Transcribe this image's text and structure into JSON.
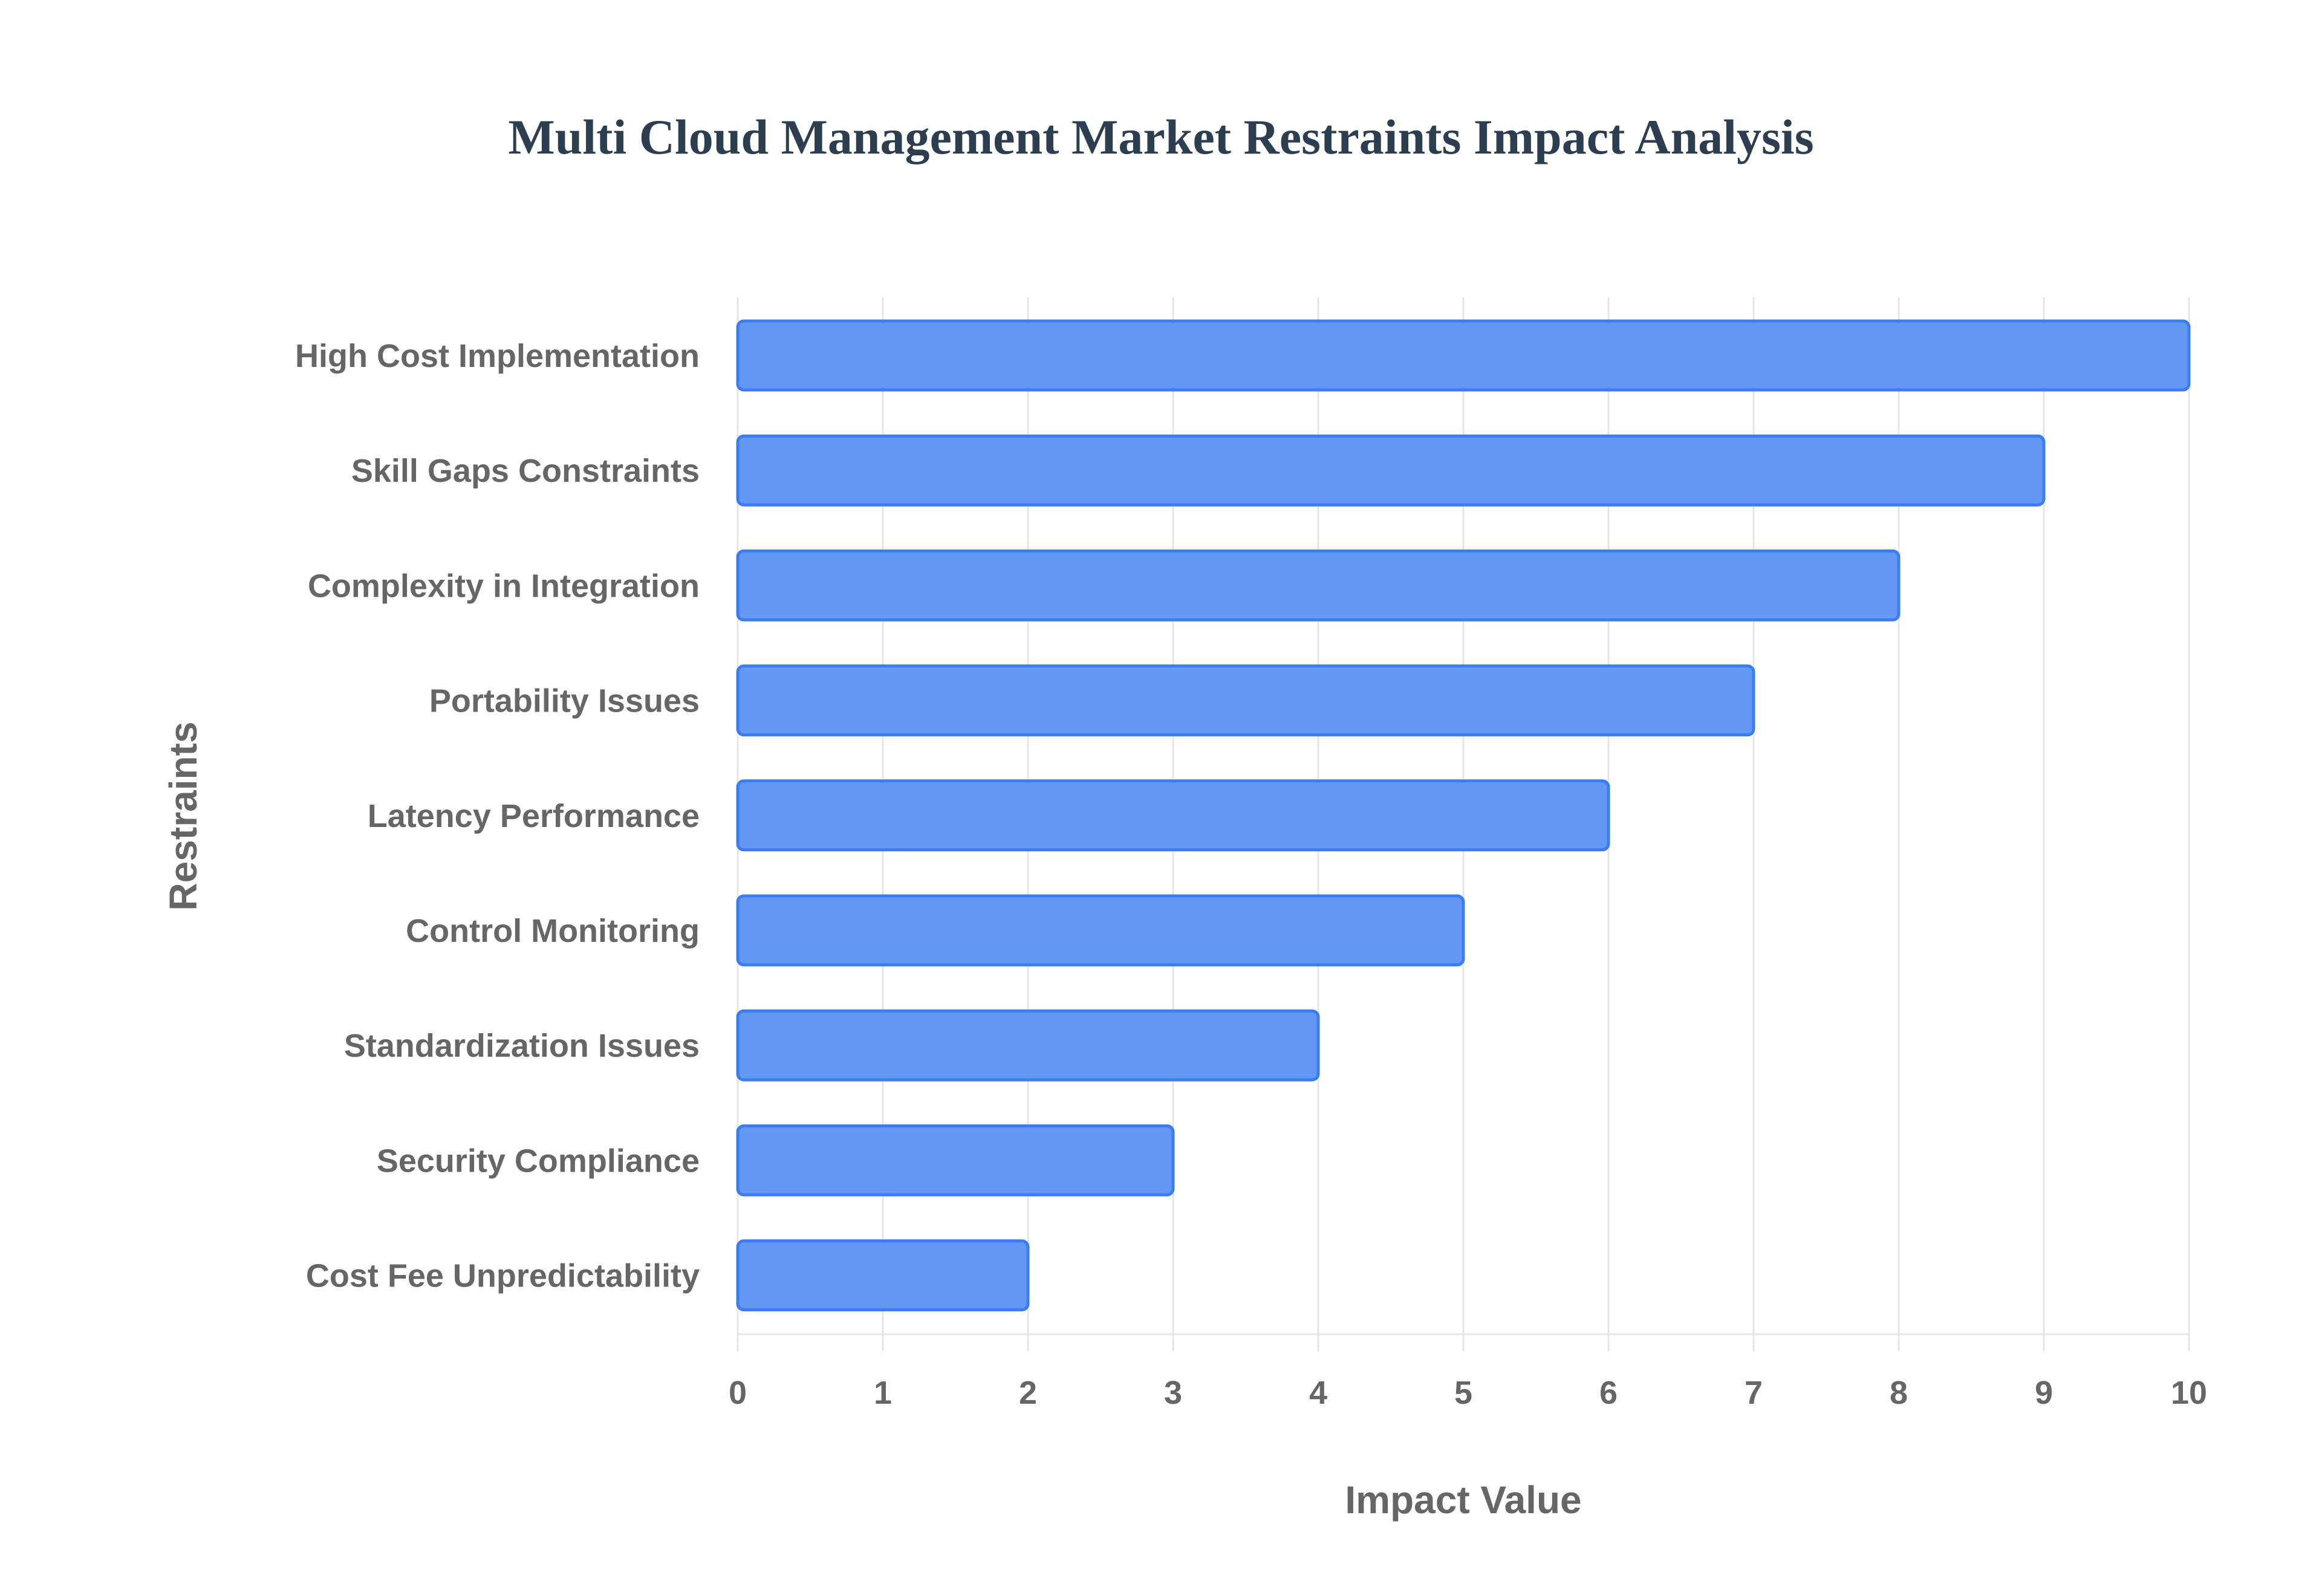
{
  "chart_data": {
    "type": "bar",
    "orientation": "horizontal",
    "title": "Multi Cloud Management Market Restraints Impact Analysis",
    "xlabel": "Impact Value",
    "ylabel": "Restraints",
    "categories": [
      "High Cost Implementation",
      "Skill Gaps Constraints",
      "Complexity in Integration",
      "Portability Issues",
      "Latency Performance",
      "Control Monitoring",
      "Standardization Issues",
      "Security Compliance",
      "Cost Fee Unpredictability"
    ],
    "values": [
      10,
      9,
      8,
      7,
      6,
      5,
      4,
      3,
      2
    ],
    "xlim": [
      0,
      10
    ],
    "xticks": [
      "0",
      "1",
      "2",
      "3",
      "4",
      "5",
      "6",
      "7",
      "8",
      "9",
      "10"
    ],
    "grid": true,
    "bar_color": "#6399f5",
    "bar_border": "#3b7cf0"
  }
}
